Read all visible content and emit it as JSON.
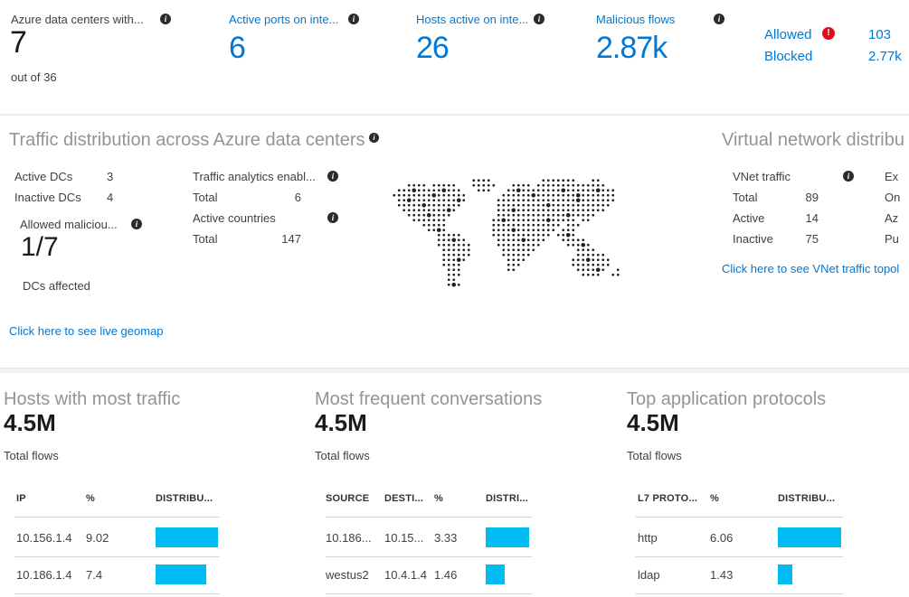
{
  "kpis": {
    "datacenters": {
      "title": "Azure data centers with...",
      "value": "7",
      "subtitle": "out of 36"
    },
    "active_ports": {
      "title": "Active ports on inte...",
      "value": "6"
    },
    "hosts_active": {
      "title": "Hosts active on inte...",
      "value": "26"
    },
    "malicious_flows": {
      "title": "Malicious flows",
      "value": "2.87k",
      "allowed_label": "Allowed",
      "allowed_value": "103",
      "blocked_label": "Blocked",
      "blocked_value": "2.77k"
    }
  },
  "traffic_distribution": {
    "title": "Traffic distribution across Azure data centers",
    "dc_stats": [
      {
        "label": "Active DCs",
        "value": "3"
      },
      {
        "label": "Inactive DCs",
        "value": "4"
      }
    ],
    "allowed_malicious": {
      "label": "Allowed maliciou...",
      "value": "1/7",
      "subtitle": "DCs affected"
    },
    "analytics_rows": [
      {
        "label": "Traffic analytics enabl...",
        "value": "",
        "info": true
      },
      {
        "label": "Total",
        "value": "6",
        "info": false
      },
      {
        "label": "Active countries",
        "value": "",
        "info": true
      },
      {
        "label": "Total",
        "value": "147",
        "info": false
      }
    ],
    "map": {
      "name": "world-dot-map",
      "dot_color": "#1f1f1f"
    },
    "geomap_link": "Click here to see live geomap"
  },
  "vnet_distribution": {
    "title": "Virtual network distribu",
    "header": "VNet traffic",
    "rows": [
      {
        "label": "Total",
        "value": "89"
      },
      {
        "label": "Active",
        "value": "14"
      },
      {
        "label": "Inactive",
        "value": "75"
      }
    ],
    "clipped_column": [
      "Ex",
      "On",
      "Az",
      "Pu"
    ],
    "topology_link": "Click here to see VNet traffic topol"
  },
  "panels": [
    {
      "title": "Hosts with most traffic",
      "metric": "4.5M",
      "metric_label": "Total flows",
      "columns": [
        "IP",
        "%",
        "DISTRIBU..."
      ],
      "rows": [
        {
          "cells": [
            "10.156.1.4"
          ],
          "pct_label": "9.02",
          "pct": 9.02
        },
        {
          "cells": [
            "10.186.1.4"
          ],
          "pct_label": "7.4",
          "pct": 7.4
        }
      ]
    },
    {
      "title": "Most frequent conversations",
      "metric": "4.5M",
      "metric_label": "Total flows",
      "columns": [
        "SOURCE",
        "DESTI...",
        "%",
        "DISTRI..."
      ],
      "rows": [
        {
          "cells": [
            "10.186...",
            "10.15..."
          ],
          "pct_label": "3.33",
          "pct": 3.33
        },
        {
          "cells": [
            "westus2",
            "10.4.1.4"
          ],
          "pct_label": "1.46",
          "pct": 1.46
        }
      ]
    },
    {
      "title": "Top application protocols",
      "metric": "4.5M",
      "metric_label": "Total flows",
      "columns": [
        "L7 PROTO...",
        "%",
        "DISTRIBU..."
      ],
      "rows": [
        {
          "cells": [
            "http"
          ],
          "pct_label": "6.06",
          "pct": 6.06
        },
        {
          "cells": [
            "ldap"
          ],
          "pct_label": "1.43",
          "pct": 1.43
        }
      ]
    }
  ],
  "colors": {
    "accent": "#0078d4",
    "bar": "#00bcf2",
    "alert": "#e00b1c",
    "title_gray": "#949494"
  }
}
